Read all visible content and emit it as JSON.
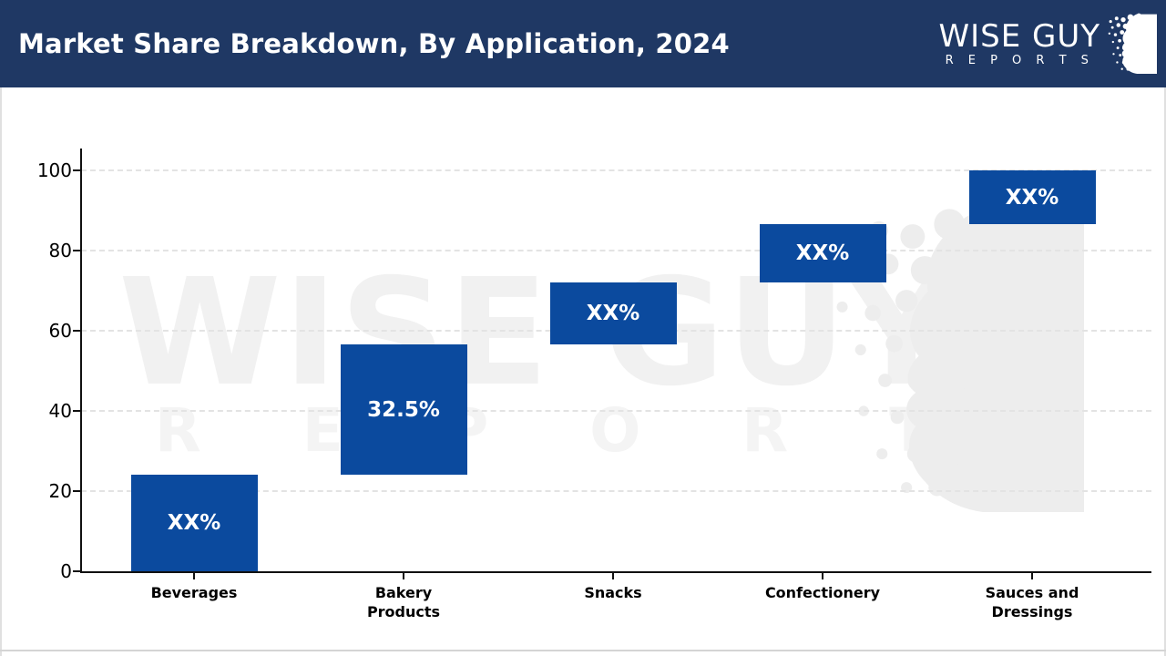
{
  "header": {
    "title": "Market Share Breakdown, By Application, 2024",
    "logo": {
      "wordmark": "WISE GUY",
      "subtext": "R E P O R T S"
    }
  },
  "watermark": {
    "wordmark": "WISE GUY",
    "subtext": "R E P O R T S"
  },
  "icons": {
    "logo_head": "dotted-face-profile-icon",
    "watermark_head": "dotted-face-profile-icon"
  },
  "colors": {
    "header_bg": "#1f3864",
    "bar_blue": "#0b4a9e",
    "bar_label": "#ffffff",
    "grid": "#e3e3e3",
    "axis": "#111111",
    "watermark": "#f1f1f1"
  },
  "chart_data": {
    "type": "bar",
    "variant": "floating-waterfall",
    "title": "Market Share Breakdown, By Application, 2024",
    "categories": [
      "Beverages",
      "Bakery Products",
      "Snacks",
      "Confectionery",
      "Sauces and Dressings"
    ],
    "series": [
      {
        "name": "Market Share (%)",
        "ranges": [
          {
            "start": 0,
            "end": 24
          },
          {
            "start": 24,
            "end": 56.5
          },
          {
            "start": 56.5,
            "end": 72
          },
          {
            "start": 72,
            "end": 86.5
          },
          {
            "start": 86.5,
            "end": 100
          }
        ],
        "labels": [
          "XX%",
          "32.5%",
          "XX%",
          "XX%",
          "XX%"
        ]
      }
    ],
    "yticks": [
      0,
      20,
      40,
      60,
      80,
      100
    ],
    "ytick_labels": [
      "0",
      "20",
      "40",
      "60",
      "80",
      "100"
    ],
    "ylim": [
      0,
      105.5
    ],
    "xlabel": "",
    "ylabel": "",
    "grid": "horizontal-dashed",
    "legend": "none",
    "bar_color": "#0b4a9e",
    "label_color": "#ffffff"
  }
}
